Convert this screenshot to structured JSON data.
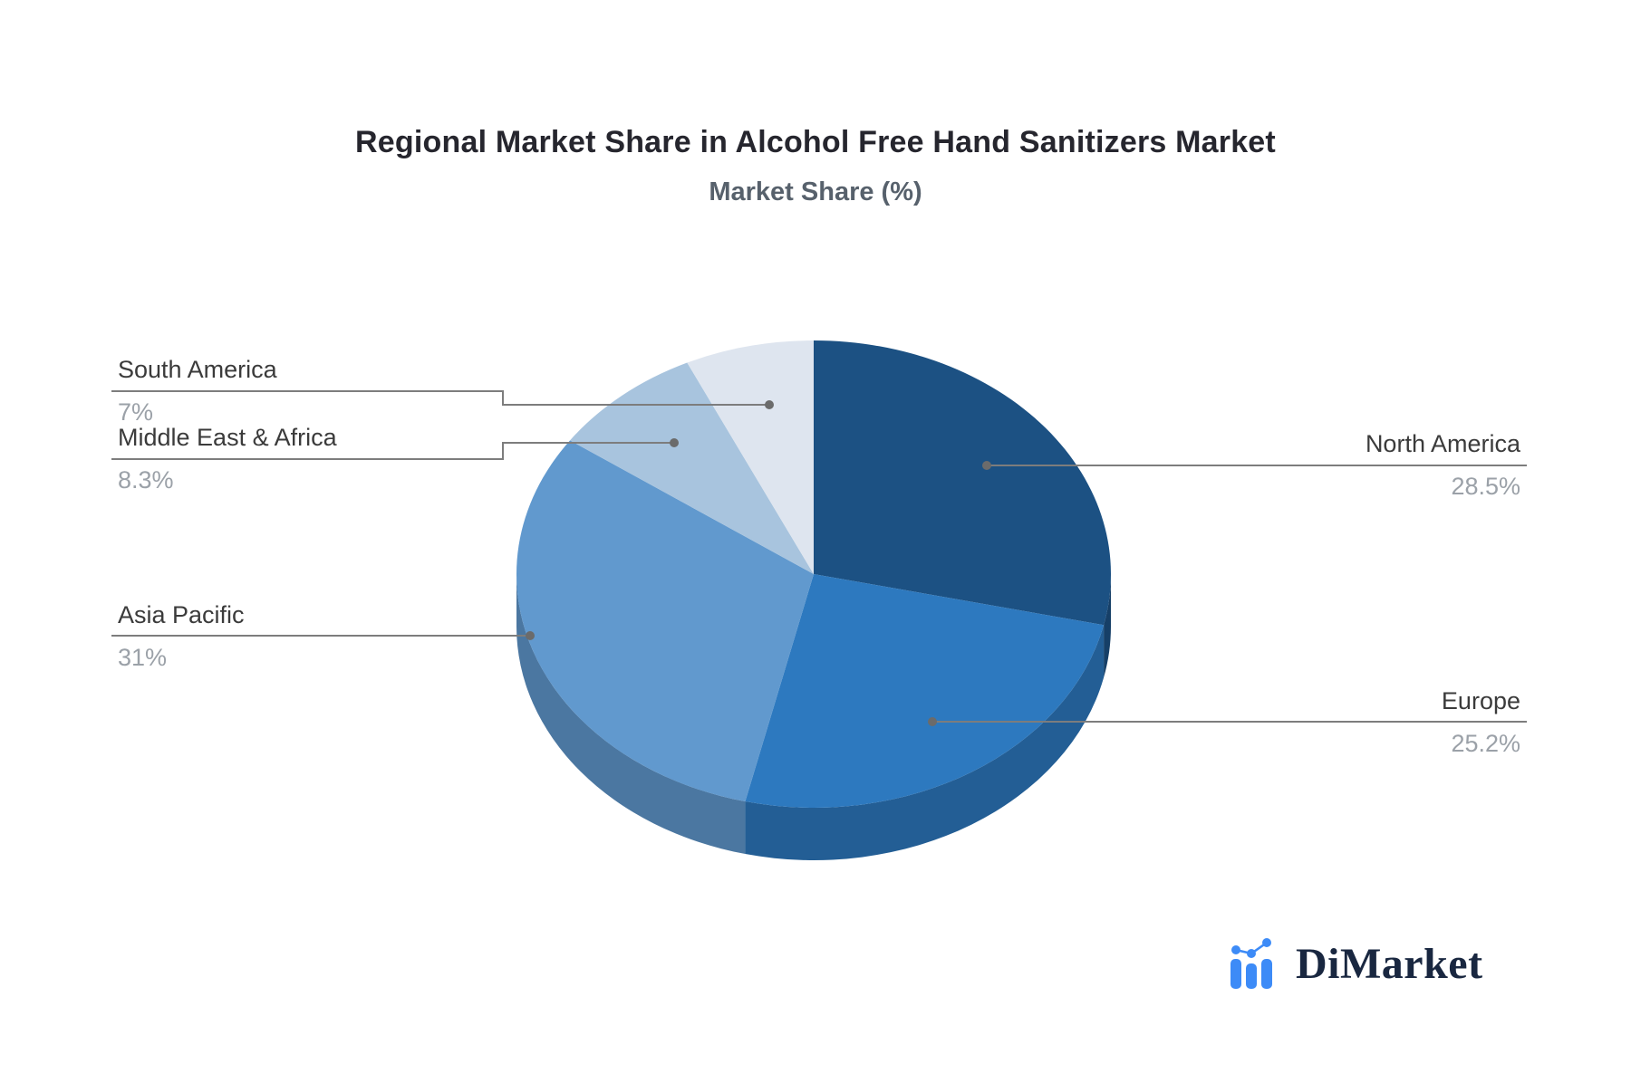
{
  "header": {
    "title": "Regional Market Share in Alcohol Free Hand Sanitizers Market",
    "subtitle": "Market Share (%)"
  },
  "logo": {
    "text": "DiMarket",
    "icon": "bar-chart-icon",
    "icon_color": "#3d8bf7",
    "text_color": "#192740"
  },
  "chart_data": {
    "type": "pie",
    "title": "Regional Market Share in Alcohol Free Hand Sanitizers Market",
    "subtitle": "Market Share (%)",
    "unit": "%",
    "effect": "3d",
    "start_angle_deg": 0,
    "direction": "clockwise",
    "legend_position": "callout-labels",
    "connector_color": "#7d7d7d",
    "connector_dot_color": "#6b6b6b",
    "label_color": "#3b3b3b",
    "value_color": "#9ba1a8",
    "series": [
      {
        "name": "North America",
        "value": 28.5,
        "label": "28.5%",
        "color": "#1c5183",
        "side_color": "#163f67"
      },
      {
        "name": "Europe",
        "value": 25.2,
        "label": "25.2%",
        "color": "#2d79bf",
        "side_color": "#235e95"
      },
      {
        "name": "Asia Pacific",
        "value": 31,
        "label": "31%",
        "color": "#6199ce",
        "side_color": "#4b77a1"
      },
      {
        "name": "Middle East & Africa",
        "value": 8.3,
        "label": "8.3%",
        "color": "#a8c4de",
        "side_color": "#8399ad"
      },
      {
        "name": "South America",
        "value": 7,
        "label": "7%",
        "color": "#dee5ef",
        "side_color": "#aeb4bd"
      }
    ]
  }
}
